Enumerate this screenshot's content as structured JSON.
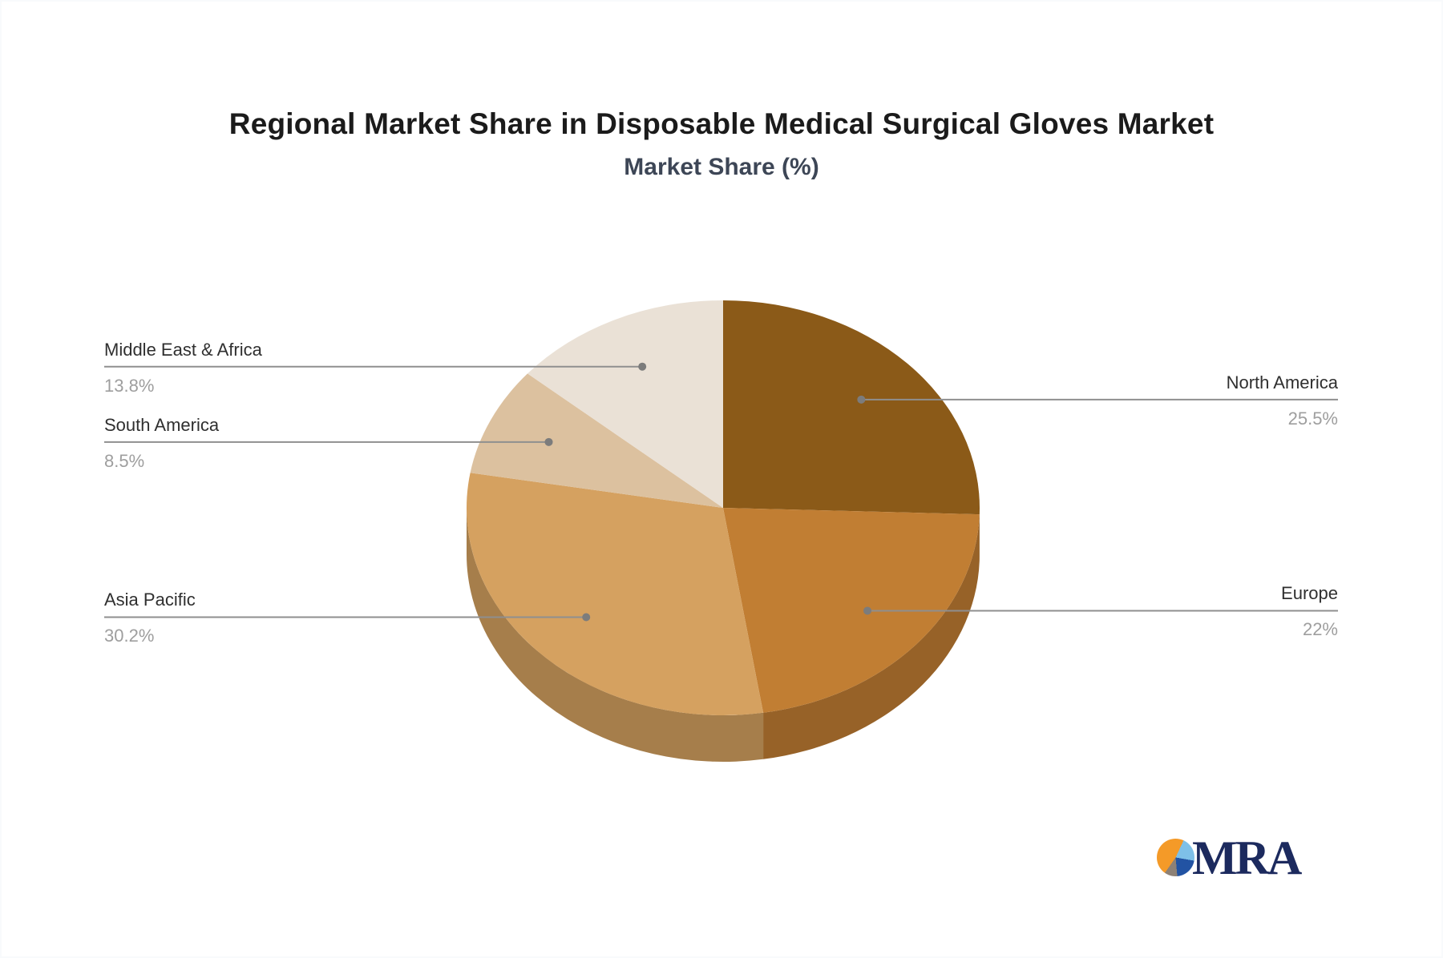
{
  "chart_data": {
    "type": "pie",
    "style": "3d",
    "title": "Regional Market Share in Disposable Medical Surgical Gloves Market",
    "subtitle": "Market Share (%)",
    "unit": "%",
    "direction": "clockwise",
    "start_angle_deg": 0,
    "legend_position": "callout-labels",
    "series": [
      {
        "label": "North America",
        "value": 25.5,
        "display": "25.5%",
        "color": "#8b5a18",
        "callout_side": "right"
      },
      {
        "label": "Europe",
        "value": 22,
        "display": "22%",
        "color": "#c17e33",
        "callout_side": "right"
      },
      {
        "label": "Asia Pacific",
        "value": 30.2,
        "display": "30.2%",
        "color": "#d5a160",
        "callout_side": "left"
      },
      {
        "label": "South America",
        "value": 8.5,
        "display": "8.5%",
        "color": "#dcc19f",
        "callout_side": "left"
      },
      {
        "label": "Middle East & Africa",
        "value": 13.8,
        "display": "13.8%",
        "color": "#eae1d6",
        "callout_side": "left"
      }
    ],
    "callout_line_color": "#8f8f8f",
    "callout_value_color": "#9e9e9e",
    "title_color": "#1b1b1b",
    "subtitle_color": "#3d4656"
  },
  "logo": {
    "text": "MRA",
    "text_color": "#1c2a5e",
    "icon": "pie-icon",
    "icon_colors": [
      "#f49a28",
      "#7ec0e8",
      "#2253a3",
      "#8d8176"
    ]
  }
}
